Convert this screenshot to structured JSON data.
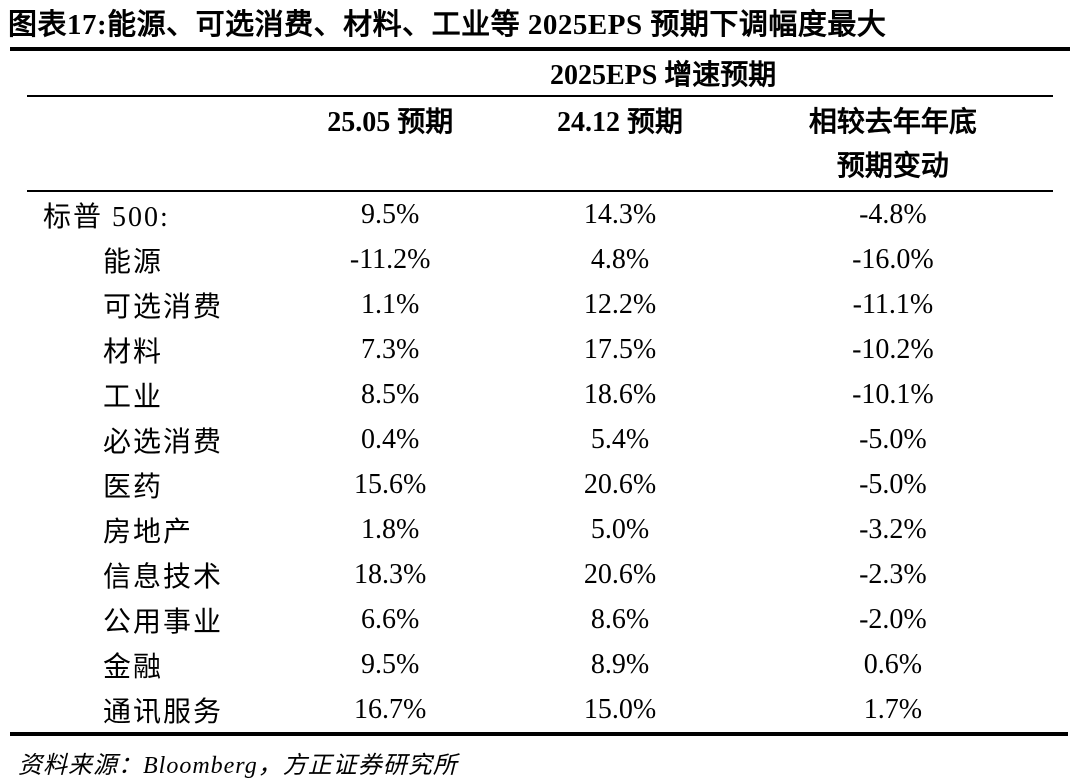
{
  "figure": {
    "title": "图表17:能源、可选消费、材料、工业等 2025EPS 预期下调幅度最大",
    "source_note": "资料来源：Bloomberg，方正证券研究所"
  },
  "table": {
    "group_header": "2025EPS 增速预期",
    "col_headers": {
      "forecast_2505": "25.05 预期",
      "forecast_2412": "24.12 预期",
      "change_line1": "相较去年年底",
      "change_line2": "预期变动"
    },
    "rows": [
      {
        "label": "标普 500:",
        "indent": false,
        "values": [
          "9.5%",
          "14.3%",
          "-4.8%"
        ]
      },
      {
        "label": "能源",
        "indent": true,
        "values": [
          "-11.2%",
          "4.8%",
          "-16.0%"
        ]
      },
      {
        "label": "可选消费",
        "indent": true,
        "values": [
          "1.1%",
          "12.2%",
          "-11.1%"
        ]
      },
      {
        "label": "材料",
        "indent": true,
        "values": [
          "7.3%",
          "17.5%",
          "-10.2%"
        ]
      },
      {
        "label": "工业",
        "indent": true,
        "values": [
          "8.5%",
          "18.6%",
          "-10.1%"
        ]
      },
      {
        "label": "必选消费",
        "indent": true,
        "values": [
          "0.4%",
          "5.4%",
          "-5.0%"
        ]
      },
      {
        "label": "医药",
        "indent": true,
        "values": [
          "15.6%",
          "20.6%",
          "-5.0%"
        ]
      },
      {
        "label": "房地产",
        "indent": true,
        "values": [
          "1.8%",
          "5.0%",
          "-3.2%"
        ]
      },
      {
        "label": "信息技术",
        "indent": true,
        "values": [
          "18.3%",
          "20.6%",
          "-2.3%"
        ]
      },
      {
        "label": "公用事业",
        "indent": true,
        "values": [
          "6.6%",
          "8.6%",
          "-2.0%"
        ]
      },
      {
        "label": "金融",
        "indent": true,
        "values": [
          "9.5%",
          "8.9%",
          "0.6%"
        ]
      },
      {
        "label": "通讯服务",
        "indent": true,
        "values": [
          "16.7%",
          "15.0%",
          "1.7%"
        ]
      }
    ]
  },
  "colors": {
    "text": "#000000",
    "background": "#ffffff",
    "rule": "#000000"
  },
  "chart_data": {
    "type": "table",
    "title": "图表17:能源、可选消费、材料、工业等 2025EPS 预期下调幅度最大",
    "group_header": "2025EPS 增速预期",
    "columns": [
      "",
      "25.05 预期",
      "24.12 预期",
      "相较去年年底 预期变动"
    ],
    "rows": [
      [
        "标普 500:",
        "9.5%",
        "14.3%",
        "-4.8%"
      ],
      [
        "能源",
        "-11.2%",
        "4.8%",
        "-16.0%"
      ],
      [
        "可选消费",
        "1.1%",
        "12.2%",
        "-11.1%"
      ],
      [
        "材料",
        "7.3%",
        "17.5%",
        "-10.2%"
      ],
      [
        "工业",
        "8.5%",
        "18.6%",
        "-10.1%"
      ],
      [
        "必选消费",
        "0.4%",
        "5.4%",
        "-5.0%"
      ],
      [
        "医药",
        "15.6%",
        "20.6%",
        "-5.0%"
      ],
      [
        "房地产",
        "1.8%",
        "5.0%",
        "-3.2%"
      ],
      [
        "信息技术",
        "18.3%",
        "20.6%",
        "-2.3%"
      ],
      [
        "公用事业",
        "6.6%",
        "8.6%",
        "-2.0%"
      ],
      [
        "金融",
        "9.5%",
        "8.9%",
        "0.6%"
      ],
      [
        "通讯服务",
        "16.7%",
        "15.0%",
        "1.7%"
      ]
    ],
    "source": "资料来源：Bloomberg，方正证券研究所"
  }
}
